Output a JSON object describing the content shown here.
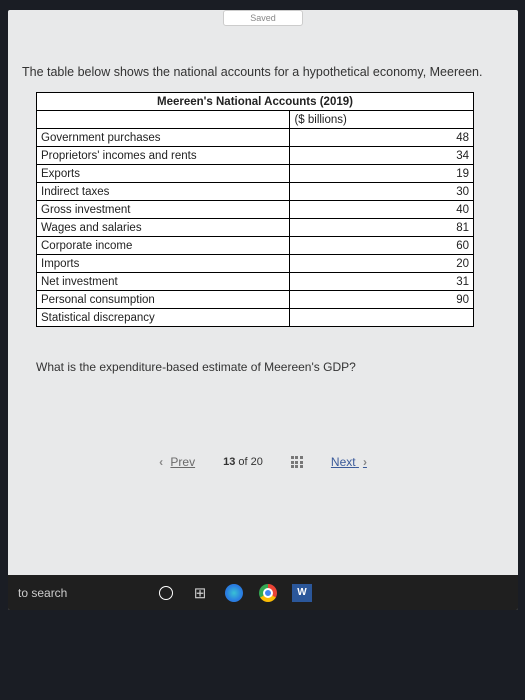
{
  "bumper_label": "Saved",
  "intro_text": "The table below shows the national accounts for a hypothetical economy, Meereen.",
  "table": {
    "title": "Meereen's National Accounts (2019)",
    "col_header_label": "",
    "col_header_value": "($ billions)",
    "rows": [
      {
        "label": "Government purchases",
        "value": "48"
      },
      {
        "label": "Proprietors' incomes and rents",
        "value": "34"
      },
      {
        "label": "Exports",
        "value": "19"
      },
      {
        "label": "Indirect taxes",
        "value": "30"
      },
      {
        "label": "Gross investment",
        "value": "40"
      },
      {
        "label": "Wages and salaries",
        "value": "81"
      },
      {
        "label": "Corporate income",
        "value": "60"
      },
      {
        "label": "Imports",
        "value": "20"
      },
      {
        "label": "Net investment",
        "value": "31"
      },
      {
        "label": "Personal consumption",
        "value": "90"
      },
      {
        "label": "Statistical discrepancy",
        "value": ""
      }
    ],
    "border_color": "#000000",
    "background": "#ffffff",
    "font_size_pt": 9
  },
  "question_text": "What is the expenditure-based estimate of Meereen's GDP?",
  "pager": {
    "prev_label": "Prev",
    "current": "13",
    "of_word": "of",
    "total": "20",
    "next_label": "Next"
  },
  "taskbar": {
    "search_placeholder": "to search"
  },
  "colors": {
    "page_background": "#e8e9ea",
    "outer_background": "#1a1d24",
    "text": "#333333",
    "link": "#3a5a9a"
  }
}
